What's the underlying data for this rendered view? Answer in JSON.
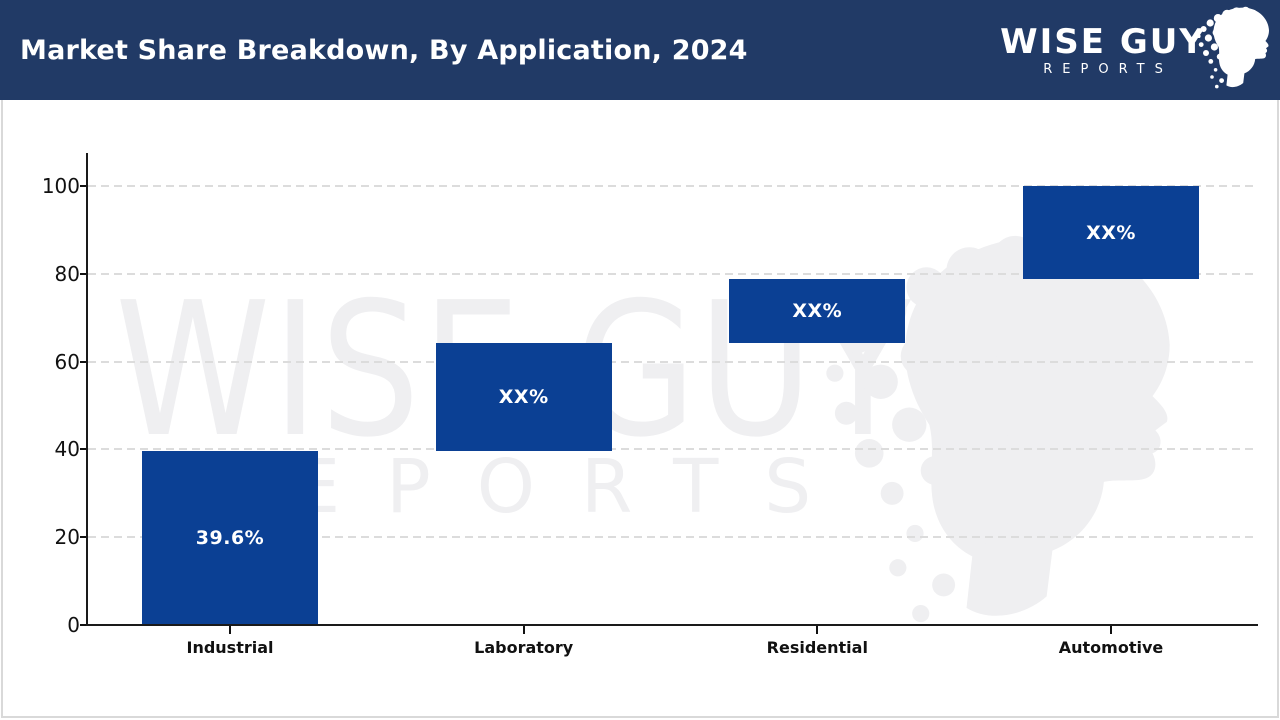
{
  "header": {
    "title": "Market Share Breakdown, By Application, 2024",
    "logo": {
      "brand": "WISE GUY",
      "sub": "REPORTS"
    }
  },
  "watermark": {
    "brand": "WISE GUY",
    "sub": "REPORTS"
  },
  "chart_data": {
    "type": "bar",
    "subtype": "waterfall",
    "title": "Market Share Breakdown, By Application, 2024",
    "categories": [
      "Industrial",
      "Laboratory",
      "Residential",
      "Automotive"
    ],
    "bars": [
      {
        "category": "Industrial",
        "start": 0,
        "end": 39.6,
        "label": "39.6%"
      },
      {
        "category": "Laboratory",
        "start": 39.6,
        "end": 64.2,
        "label": "XX%"
      },
      {
        "category": "Residential",
        "start": 64.2,
        "end": 78.8,
        "label": "XX%"
      },
      {
        "category": "Automotive",
        "start": 78.8,
        "end": 100,
        "label": "XX%"
      }
    ],
    "ylim": [
      0,
      100
    ],
    "yticks": [
      0,
      20,
      40,
      60,
      80,
      100
    ],
    "xlabel": "",
    "ylabel": "",
    "grid": "horizontal-dashed",
    "legend": "none",
    "bar_color": "#0b4094",
    "bar_label_color": "#ffffff"
  },
  "colors": {
    "header_bg": "#213a66",
    "bar": "#0b4094",
    "grid": "#dcdcdc",
    "axis": "#1a1a1a",
    "watermark": "#efeff1",
    "page_border": "#d9d9d9"
  }
}
